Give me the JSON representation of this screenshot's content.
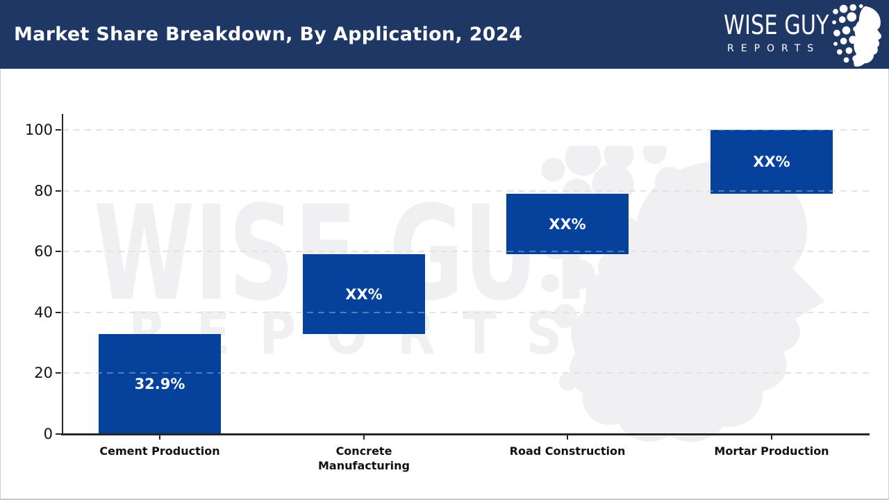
{
  "header": {
    "title": "Market Share Breakdown, By Application, 2024",
    "logo": {
      "line1": "WISE GUY",
      "line2": "REPORTS"
    }
  },
  "watermark": {
    "line1": "WISE GUY",
    "line2": "REPORTS"
  },
  "chart_data": {
    "type": "bar",
    "subtype": "waterfall",
    "title": "Market Share Breakdown, By Application, 2024",
    "categories": [
      "Cement Production",
      "Concrete Manufacturing",
      "Road Construction",
      "Mortar Production"
    ],
    "bars": [
      {
        "category": "Cement Production",
        "start": 0,
        "end": 32.9,
        "label": "32.9%"
      },
      {
        "category": "Concrete Manufacturing",
        "start": 32.9,
        "end": 59.1,
        "label": "XX%"
      },
      {
        "category": "Road Construction",
        "start": 59.1,
        "end": 79.0,
        "label": "XX%"
      },
      {
        "category": "Mortar Production",
        "start": 79.0,
        "end": 100.0,
        "label": "XX%"
      }
    ],
    "yticks": [
      0,
      20,
      40,
      60,
      80,
      100
    ],
    "ylim": [
      0,
      105
    ],
    "grid": "horizontal-dashed",
    "legend": "none"
  },
  "colors": {
    "header_bg": "#1F3765",
    "bar": "#06429B",
    "bar_label": "#FFFFFF",
    "grid": "#D7D7D7",
    "axis": "#262626",
    "tick_text": "#111111",
    "watermark": "#F0F0F2",
    "title_text": "#FFFFFF"
  }
}
